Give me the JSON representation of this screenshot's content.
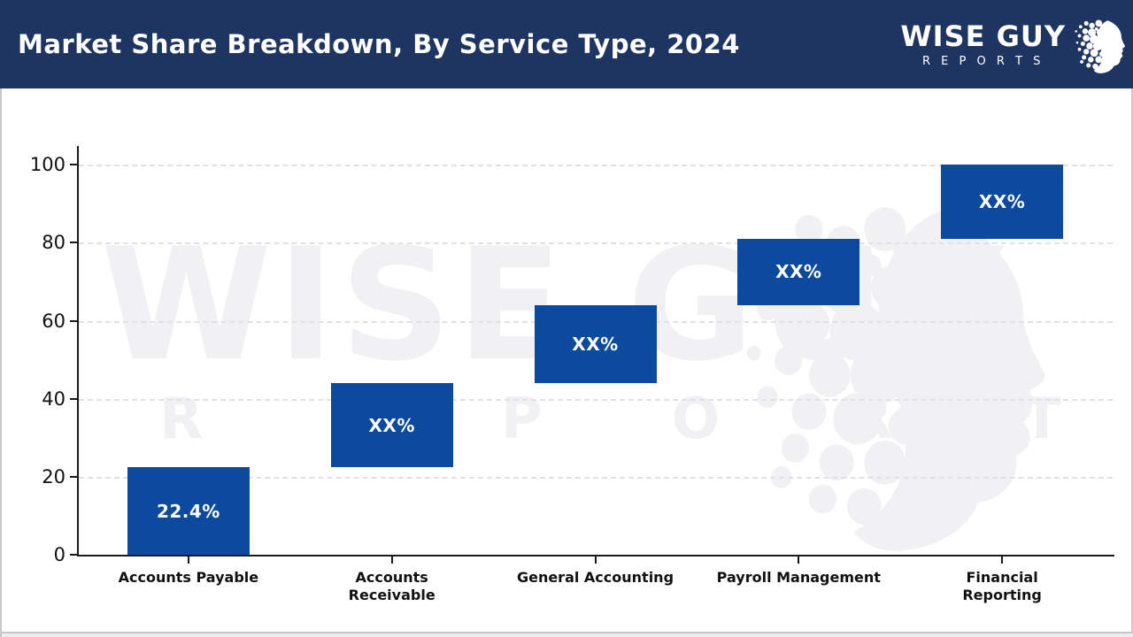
{
  "header": {
    "title": "Market Share Breakdown, By Service Type, 2024",
    "brand": {
      "name": "WISE GUY",
      "subname": "R E P O R T S"
    }
  },
  "watermark": {
    "name": "WISE GUY",
    "subname": "R E P O R T S"
  },
  "colors": {
    "header_bg": "#1e3461",
    "bar": "#0b4a9e",
    "bar_label": "#ffffff",
    "watermark": "#f1f1f3",
    "grid": "#e1e1e4",
    "axis": "#1a1a1a",
    "text": "#111111"
  },
  "chart_data": {
    "type": "bar",
    "subtype": "waterfall",
    "title": "Market Share Breakdown, By Service Type, 2024",
    "xlabel": "",
    "ylabel": "",
    "legend": "none",
    "grid": "horizontal-dashed",
    "ylim": [
      0,
      105
    ],
    "y_ticks": [
      0,
      20,
      40,
      60,
      80,
      100
    ],
    "categories": [
      "Accounts Payable",
      "Accounts Receivable",
      "General Accounting",
      "Payroll Management",
      "Financial Reporting"
    ],
    "segments": [
      {
        "category": "Accounts Payable",
        "display": "Accounts Payable",
        "start": 0,
        "end": 22.4,
        "label": "22.4%"
      },
      {
        "category": "Accounts Receivable",
        "display": "Accounts\nReceivable",
        "start": 22.4,
        "end": 44,
        "label": "XX%"
      },
      {
        "category": "General Accounting",
        "display": "General Accounting",
        "start": 44,
        "end": 64,
        "label": "XX%"
      },
      {
        "category": "Payroll Management",
        "display": "Payroll Management",
        "start": 64,
        "end": 81,
        "label": "XX%"
      },
      {
        "category": "Financial Reporting",
        "display": "Financial\nReporting",
        "start": 81,
        "end": 100,
        "label": "XX%"
      }
    ]
  }
}
